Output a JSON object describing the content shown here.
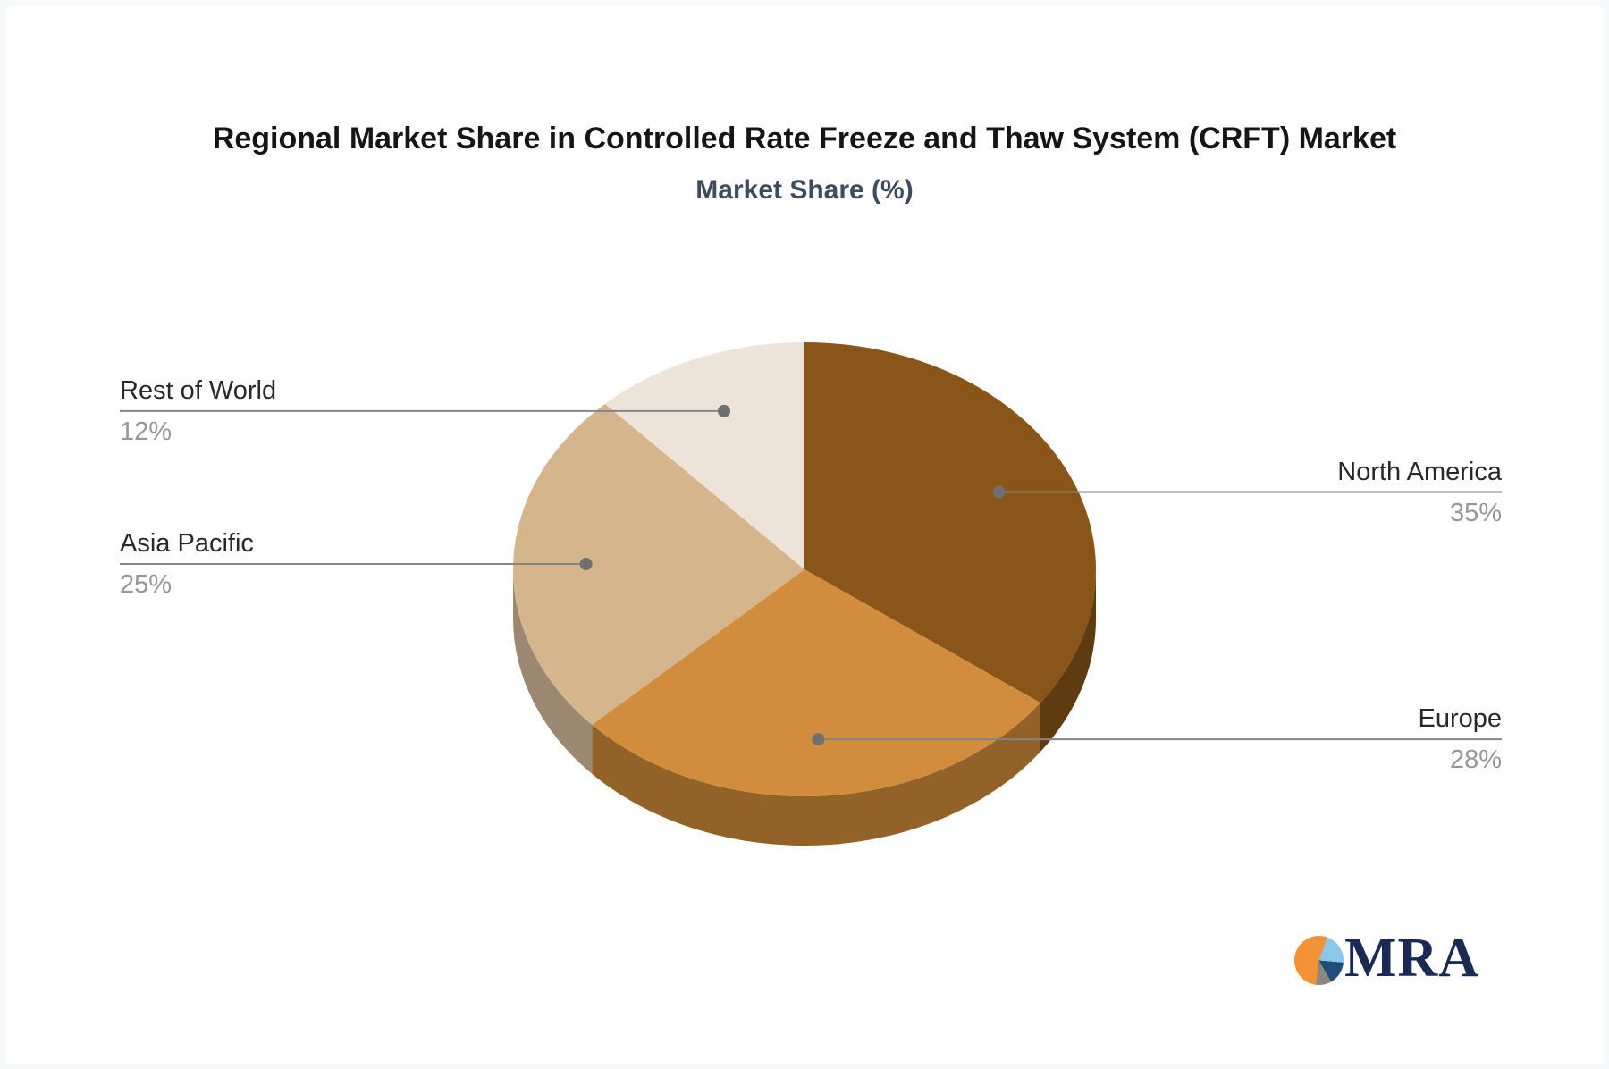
{
  "page": {
    "title": "Regional Market Share in Controlled Rate Freeze and Thaw System (CRFT) Market",
    "subtitle": "Market Share (%)"
  },
  "chart_data": {
    "type": "pie",
    "style": "3d",
    "title": "Regional Market Share in Controlled Rate Freeze and Thaw System (CRFT) Market",
    "subtitle": "Market Share (%)",
    "unit": "%",
    "direction": "clockwise",
    "start_angle_deg": 0,
    "labels": [
      "North America",
      "Europe",
      "Asia Pacific",
      "Rest of World"
    ],
    "values": [
      35,
      28,
      25,
      12
    ],
    "display_values": [
      "35%",
      "28%",
      "25%",
      "12%"
    ],
    "colors": [
      "#8A5518",
      "#D18C3E",
      "#D5B68C",
      "#EDE4D9"
    ],
    "side_colors": [
      "#5F3B11",
      "#936229",
      "#9C8870",
      "#E0D2C2"
    ],
    "legend": "leader-line-callouts",
    "callout_sides": [
      "right",
      "right",
      "left",
      "left"
    ]
  },
  "callouts": {
    "line_color": "#858585",
    "dot_color": "#707070",
    "name_color": "#282828",
    "value_color": "#969696"
  },
  "logo": {
    "text": "MRA",
    "text_color": "#1B2A55",
    "icon_colors": {
      "orange": "#F29236",
      "light_blue": "#8DC7E7",
      "navy": "#1F4E79",
      "gray": "#8C8683"
    }
  }
}
